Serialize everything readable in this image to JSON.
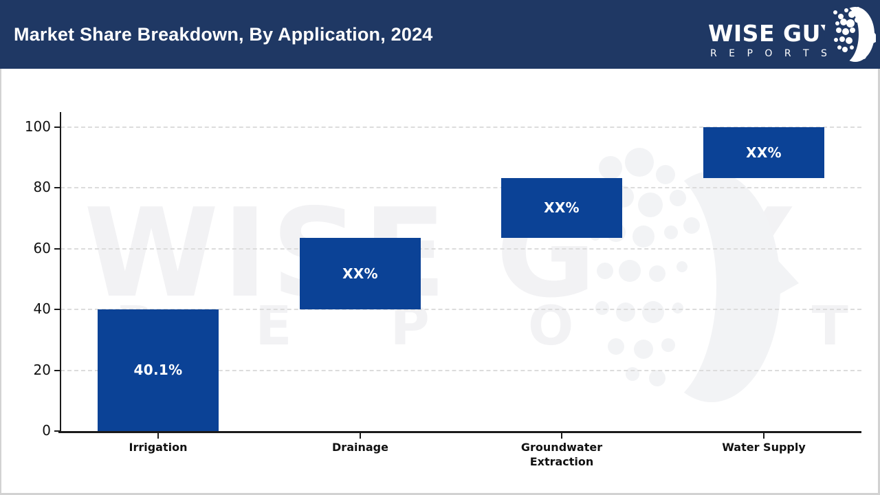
{
  "header": {
    "title": "Market Share Breakdown, By Application, 2024",
    "logo": {
      "brand_top": "WISE GUY",
      "brand_bottom": "R E P O R T S"
    }
  },
  "watermark": {
    "top": "WISE GUY",
    "bottom": "R E P O R T S"
  },
  "chart_data": {
    "type": "bar",
    "subtype": "stacked-waterfall-breakdown",
    "title": "Market Share Breakdown, By Application, 2024",
    "categories": [
      "Irrigation",
      "Drainage",
      "Groundwater Extraction",
      "Water Supply"
    ],
    "bar_labels": [
      "40.1%",
      "XX%",
      "XX%",
      "XX%"
    ],
    "series": [
      {
        "name": "Market Share",
        "segments": [
          {
            "from": 0,
            "to": 40.1
          },
          {
            "from": 40.1,
            "to": 63.6
          },
          {
            "from": 63.6,
            "to": 83.3
          },
          {
            "from": 83.3,
            "to": 100
          }
        ]
      }
    ],
    "xlabel": "",
    "ylabel": "",
    "ylim": [
      0,
      100
    ],
    "yticks": [
      0,
      20,
      40,
      60,
      80,
      100
    ],
    "grid": "horizontal-dashed",
    "legend": "none",
    "bar_color": "#0b4296",
    "header_color": "#1f3864"
  }
}
